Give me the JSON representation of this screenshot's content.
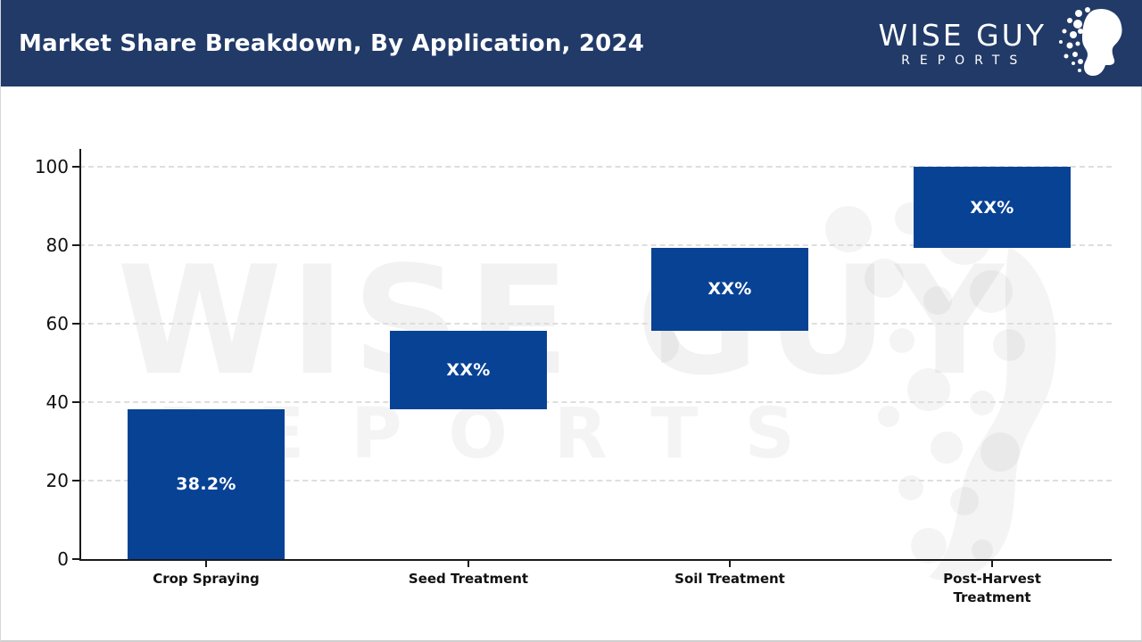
{
  "header": {
    "title": "Market Share Breakdown, By Application, 2024",
    "logo": {
      "line1": "WISE GUY",
      "line2": "REPORTS"
    }
  },
  "watermark": {
    "line1": "WISE GUY",
    "line2": "REPORTS"
  },
  "colors": {
    "header_bg": "#213a68",
    "bar": "#084295",
    "axis": "#1a1a1a",
    "grid": "#dedede",
    "bar_label_text": "#ffffff",
    "tick_label_text": "#111111"
  },
  "chart_data": {
    "type": "bar",
    "subtype": "waterfall",
    "title": "Market Share Breakdown, By Application, 2024",
    "categories": [
      "Crop Spraying",
      "Seed Treatment",
      "Soil Treatment",
      "Post-Harvest Treatment"
    ],
    "segments": [
      {
        "category": "Crop Spraying",
        "start": 0,
        "end": 38.2,
        "label": "38.2%"
      },
      {
        "category": "Seed Treatment",
        "start": 38.2,
        "end": 58.2,
        "label": "XX%"
      },
      {
        "category": "Soil Treatment",
        "start": 58.2,
        "end": 79.3,
        "label": "XX%"
      },
      {
        "category": "Post-Harvest Treatment",
        "start": 79.3,
        "end": 100,
        "label": "XX%"
      }
    ],
    "xlabel": "",
    "ylabel": "",
    "ylim": [
      0,
      100
    ],
    "yticks": [
      0,
      20,
      40,
      60,
      80,
      100
    ],
    "grid": "horizontal-dashed",
    "legend": "none"
  }
}
